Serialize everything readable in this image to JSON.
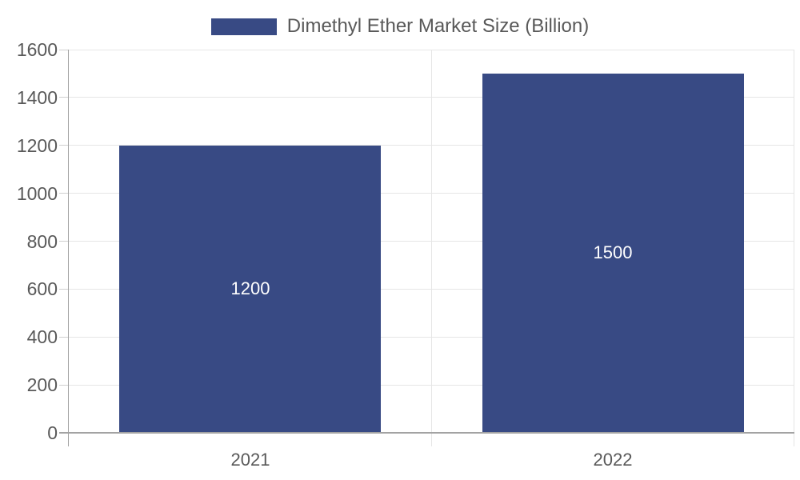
{
  "legend": {
    "label": "Dimethyl Ether Market Size (Billion)"
  },
  "chart_data": {
    "type": "bar",
    "title": "",
    "categories": [
      "2021",
      "2022"
    ],
    "series": [
      {
        "name": "Dimethyl Ether Market Size (Billion)",
        "values": [
          1200,
          1500
        ]
      }
    ],
    "value_labels": [
      "1200",
      "1500"
    ],
    "ylim": [
      0,
      1600
    ],
    "ytick_step": 200,
    "ytick_labels": [
      "0",
      "200",
      "400",
      "600",
      "800",
      "1000",
      "1200",
      "1400",
      "1600"
    ],
    "grid": true,
    "legend_position": "top-center",
    "colors": {
      "bar": "#384a84",
      "axis_text": "#595959",
      "gridline": "#e6e6e6",
      "right_border": "#e3e3e3",
      "axis_line": "#a3a3a3",
      "tick": "#cfcfcf",
      "value_label": "#ffffff"
    }
  }
}
